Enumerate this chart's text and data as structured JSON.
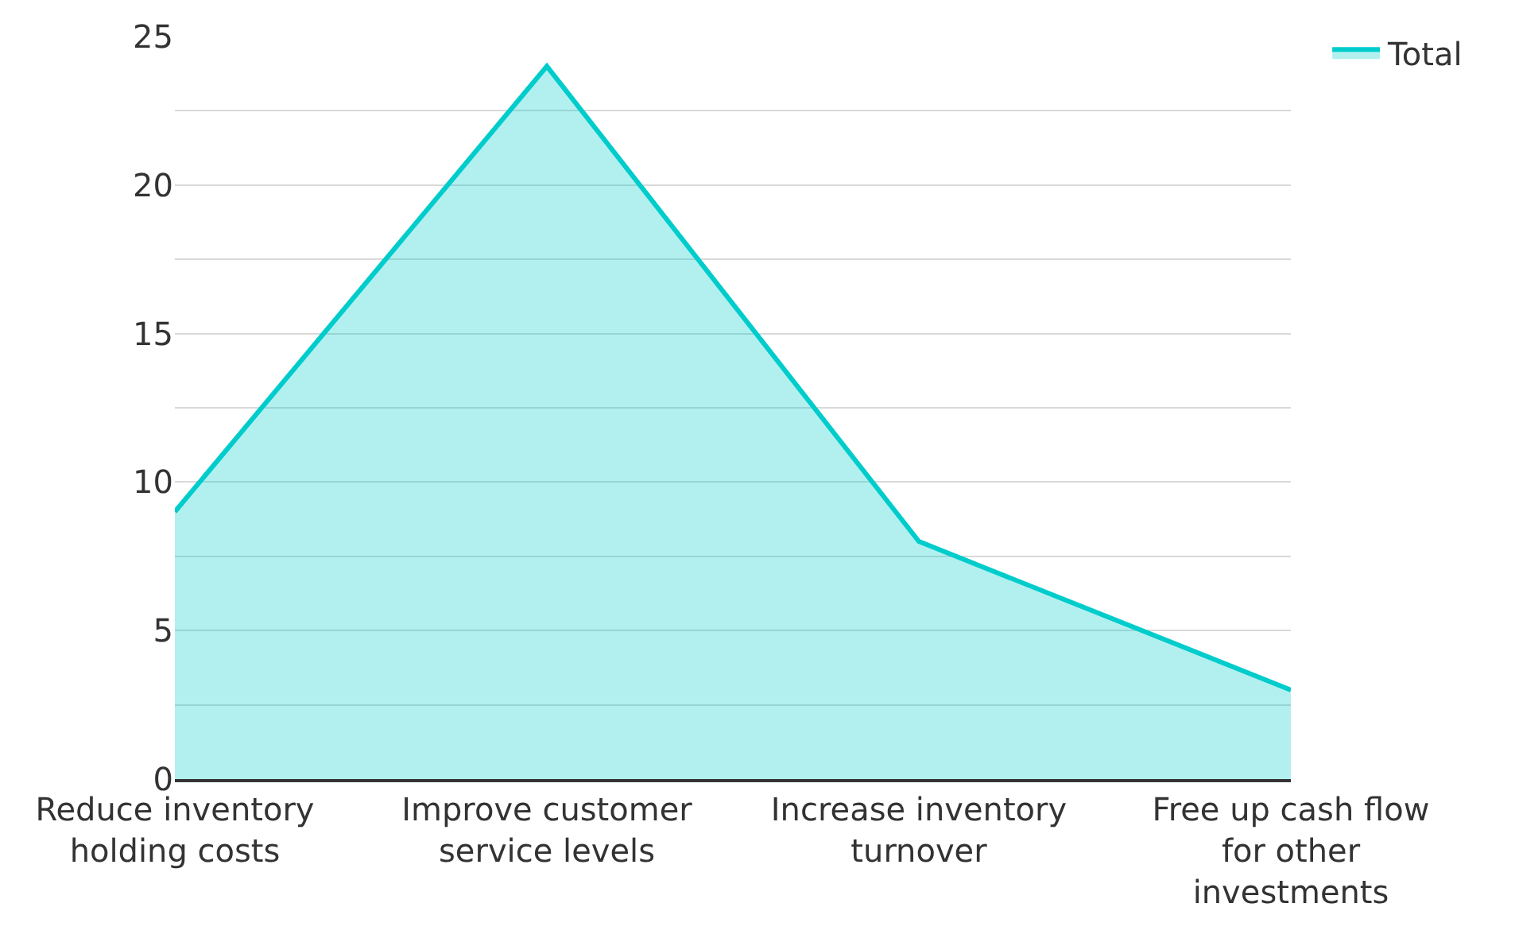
{
  "chart_data": {
    "type": "area",
    "categories": [
      "Reduce inventory holding costs",
      "Improve customer service levels",
      "Increase inventory turnover",
      "Free up cash flow for other investments"
    ],
    "series": [
      {
        "name": "Total",
        "color": "#00cccc",
        "values": [
          9,
          24,
          8,
          3
        ]
      }
    ],
    "ylim": [
      0,
      25
    ],
    "yticks": [
      0,
      {
        "value": 2.5,
        "label": null
      },
      5,
      {
        "value": 7.5,
        "label": null
      },
      10,
      {
        "value": 12.5,
        "label": null
      },
      15,
      {
        "value": 17.5,
        "label": null
      },
      20,
      {
        "value": 22.5,
        "label": null
      },
      25
    ],
    "grid": "y",
    "legend": "top right"
  }
}
